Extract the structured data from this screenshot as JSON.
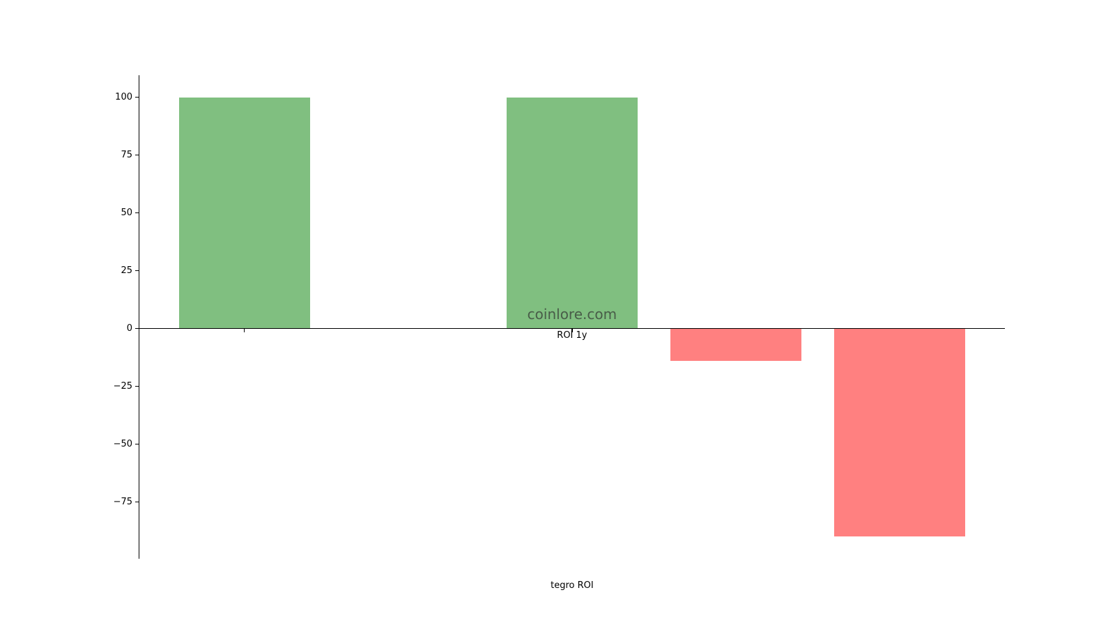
{
  "page": {
    "background": "#ffffff"
  },
  "chart_data": {
    "type": "bar",
    "title": "tegro ROI",
    "watermark": "coinlore.com",
    "categories": [
      "",
      "",
      "ROI 1y",
      "",
      ""
    ],
    "values": [
      100,
      0,
      100,
      -14,
      -90
    ],
    "xlabel": "",
    "ylabel": "",
    "ylim": [
      -99.5,
      109.5
    ],
    "grid": false,
    "legend": "none",
    "yticks": [
      {
        "value": 100,
        "label": "100"
      },
      {
        "value": 75,
        "label": "75"
      },
      {
        "value": 50,
        "label": "50"
      },
      {
        "value": 25,
        "label": "25"
      },
      {
        "value": 0,
        "label": "0"
      },
      {
        "value": -25,
        "label": "−25"
      },
      {
        "value": -50,
        "label": "−50"
      },
      {
        "value": -75,
        "label": "−75"
      }
    ],
    "xticks": [
      {
        "slot": 0,
        "label": ""
      },
      {
        "slot": 2,
        "label": "ROI 1y"
      }
    ],
    "colors": {
      "positive": "#80bf80",
      "negative": "#ff8080",
      "axis": "#000000",
      "text": "#000000",
      "watermark_text": "rgba(45,45,45,0.68)"
    }
  }
}
